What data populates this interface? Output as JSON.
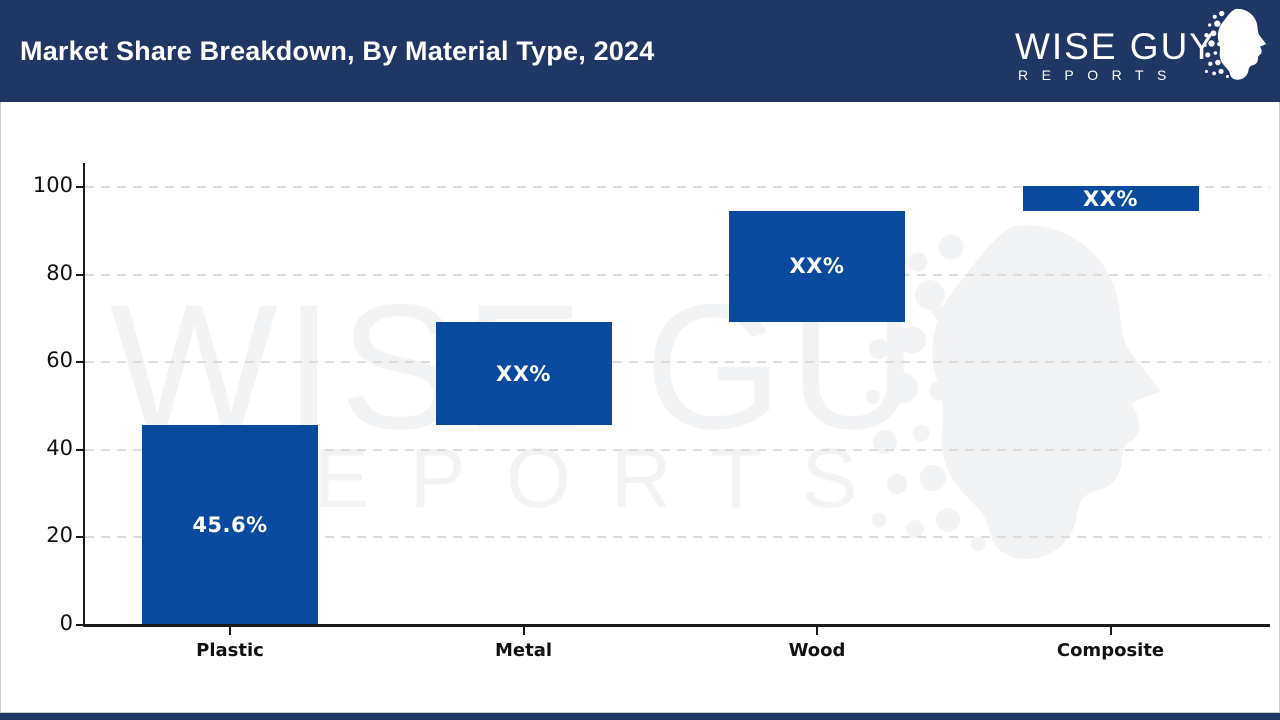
{
  "header": {
    "title": "Market Share Breakdown, By Material Type, 2024",
    "logo": {
      "line1": "WISE GUY",
      "line2": "REPORTS"
    }
  },
  "watermark": {
    "line1": "WISE GUY",
    "line2": "REPORTS"
  },
  "colors": {
    "header_bg": "#1e3765",
    "bar_blue": "#0a4a9e",
    "gridline": "#dcdcdc",
    "axis": "#1a1a1a",
    "watermark": "#f2f3f5",
    "bar_label_text": "#ffffff",
    "title_text": "#ffffff"
  },
  "chart_data": {
    "type": "bar",
    "subtype": "waterfall",
    "title": "Market Share Breakdown, By Material Type, 2024",
    "categories": [
      "Plastic",
      "Metal",
      "Wood",
      "Composite"
    ],
    "segments": [
      {
        "category": "Plastic",
        "cumulative_start": 0,
        "cumulative_end": 45.6,
        "value": 45.6,
        "label": "45.6%"
      },
      {
        "category": "Metal",
        "cumulative_start": 45.6,
        "cumulative_end": 69.2,
        "value": 23.6,
        "label": "XX%"
      },
      {
        "category": "Wood",
        "cumulative_start": 69.2,
        "cumulative_end": 94.5,
        "value": 25.3,
        "label": "XX%"
      },
      {
        "category": "Composite",
        "cumulative_start": 94.5,
        "cumulative_end": 100.2,
        "value": 5.7,
        "label": "XX%"
      }
    ],
    "yticks": [
      0,
      20,
      40,
      60,
      80,
      100
    ],
    "ylim": [
      0,
      105
    ],
    "xlabel": "",
    "ylabel": "",
    "grid": "horizontal dashed",
    "legend": "none"
  }
}
